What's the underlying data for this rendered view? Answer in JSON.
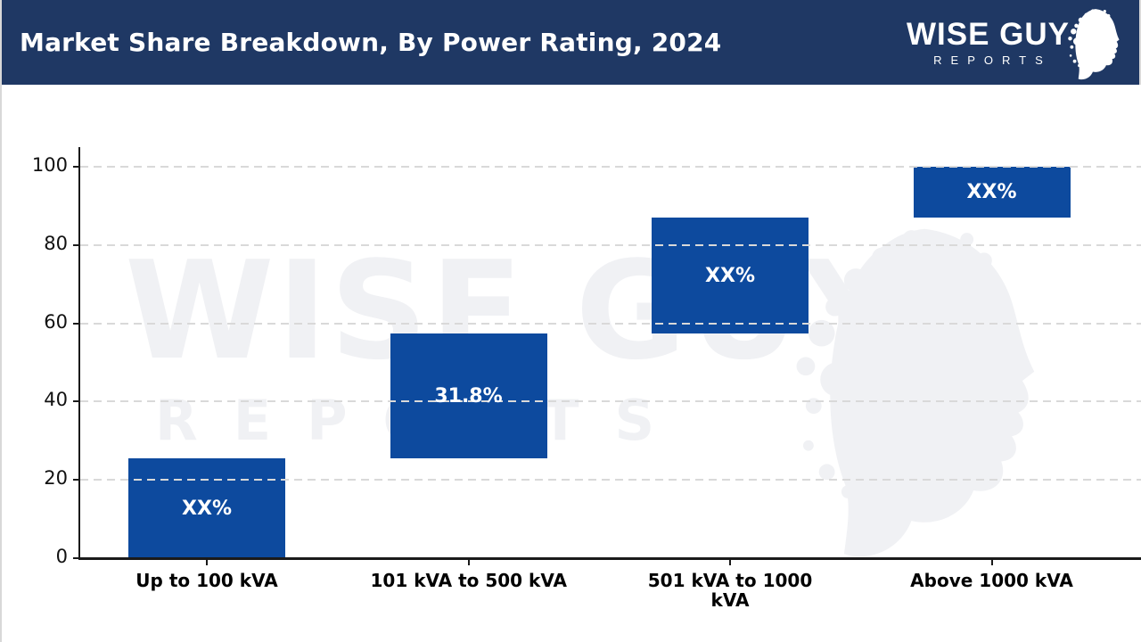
{
  "header": {
    "title": "Market Share Breakdown, By Power Rating, 2024",
    "brand": {
      "line1": "WISE GUY",
      "line2": "REPORTS"
    }
  },
  "watermark": {
    "line1": "WISE GUY",
    "line2": "REPORTS"
  },
  "chart_data": {
    "type": "bar",
    "variant": "floating-segment (waterfall-style market share breakdown)",
    "title": "Market Share Breakdown, By Power Rating, 2024",
    "categories": [
      "Up to 100 kVA",
      "101 kVA to 500 kVA",
      "501 kVA to 1000 kVA",
      "Above 1000 kVA"
    ],
    "tick_label_lines": [
      [
        "Up to 100 kVA"
      ],
      [
        "101 kVA to 500 kVA"
      ],
      [
        "501 kVA to 1000",
        "kVA"
      ],
      [
        "Above 1000 kVA"
      ]
    ],
    "bars": [
      {
        "category": "Up to 100 kVA",
        "start": 0,
        "end": 25.5,
        "label": "XX%"
      },
      {
        "category": "101 kVA to 500 kVA",
        "start": 25.5,
        "end": 57.3,
        "label": "31.8%"
      },
      {
        "category": "501 kVA to 1000 kVA",
        "start": 57.3,
        "end": 87,
        "label": "XX%"
      },
      {
        "category": "Above 1000 kVA",
        "start": 87,
        "end": 100,
        "label": "XX%"
      }
    ],
    "xlabel": "",
    "ylabel": "",
    "ylim": [
      0,
      100
    ],
    "yticks": [
      0,
      20,
      40,
      60,
      80,
      100
    ],
    "grid": {
      "horizontal": true,
      "style": "dashed",
      "above_bars": true
    },
    "legend": "none"
  },
  "colors": {
    "header_bg": "#1f3864",
    "bar": "#0d4a9e",
    "grid": "#d9d9d9",
    "axis": "#1a1a1a",
    "watermark": "#f0f1f4",
    "title_text": "#ffffff",
    "tick_text": "#111111"
  }
}
